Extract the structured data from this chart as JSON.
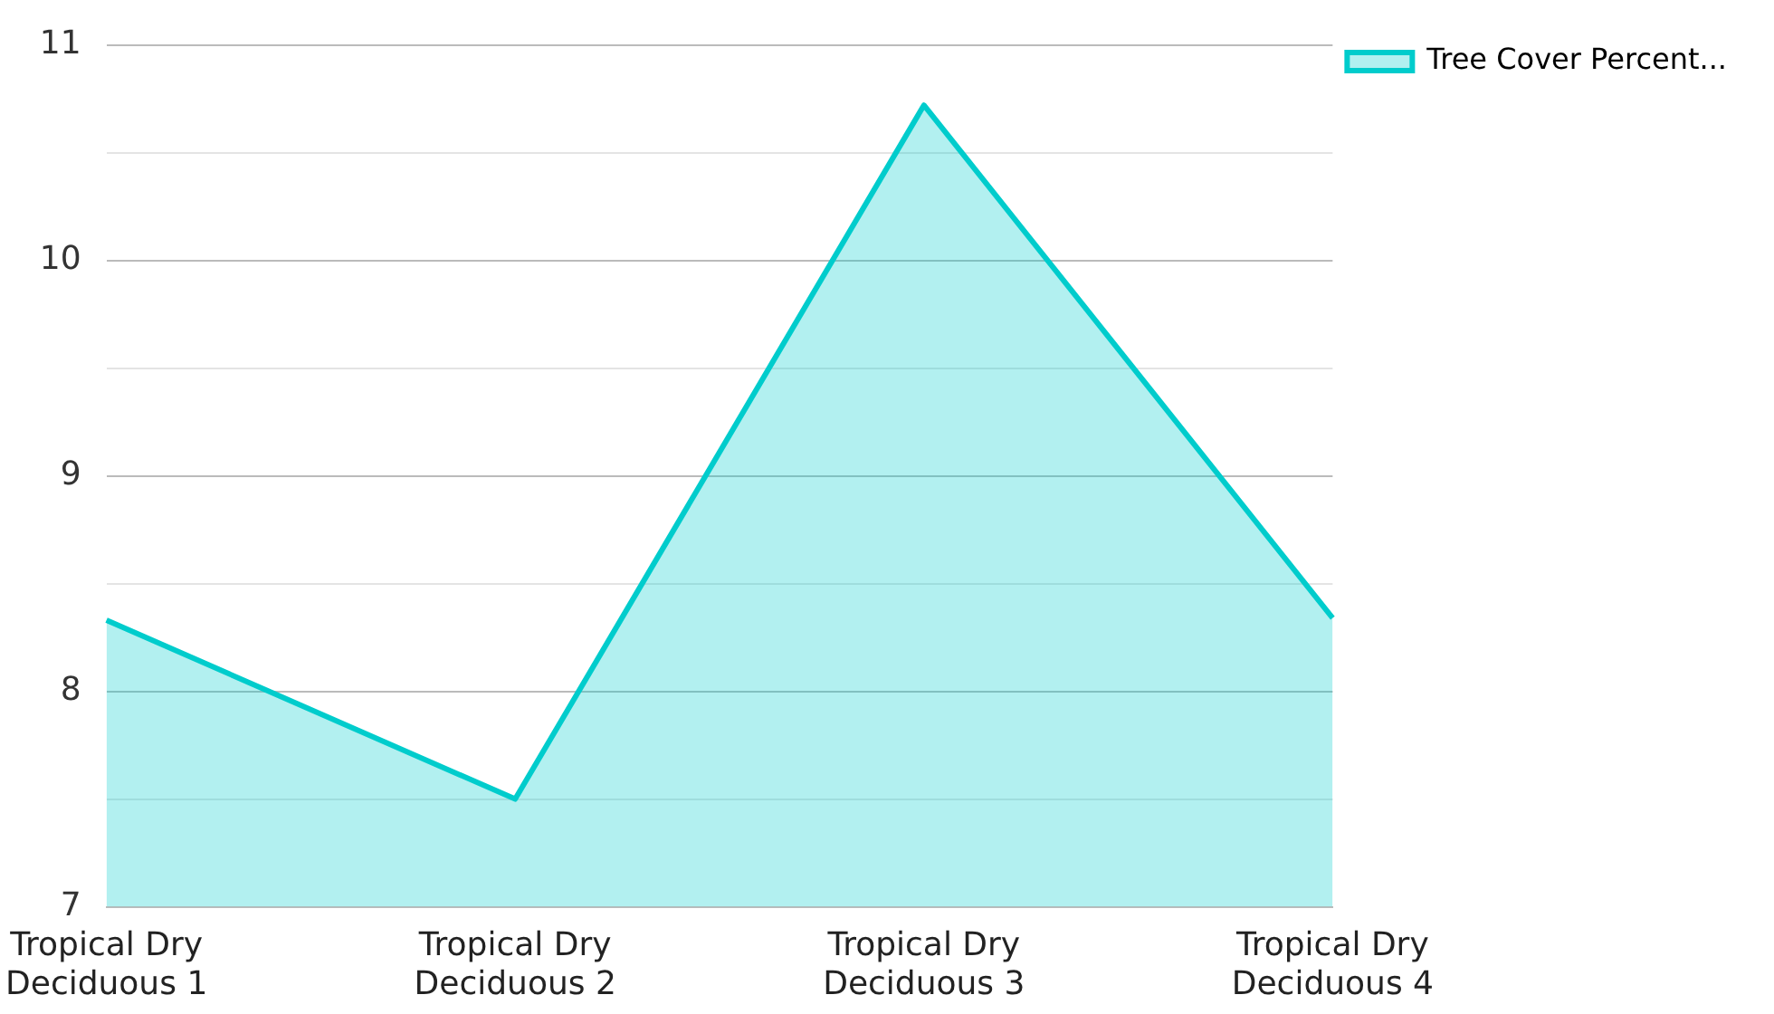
{
  "chart_data": {
    "type": "area",
    "categories": [
      "Tropical Dry Deciduous 1",
      "Tropical Dry Deciduous 2",
      "Tropical Dry Deciduous 3",
      "Tropical Dry Deciduous 4"
    ],
    "series": [
      {
        "name": "Tree Cover Percent...",
        "color": "#00cccc",
        "values": [
          8.33,
          7.5,
          10.72,
          8.34
        ]
      }
    ],
    "ylim": [
      7,
      11
    ],
    "yticks": [
      7,
      {
        "value": 7.5,
        "label": null
      },
      8,
      {
        "value": 8.5,
        "label": null
      },
      9,
      {
        "value": 9.5,
        "label": null
      },
      10,
      {
        "value": 10.5,
        "label": null
      },
      11
    ],
    "grid": "y",
    "legend": "top right",
    "marker": "none"
  }
}
